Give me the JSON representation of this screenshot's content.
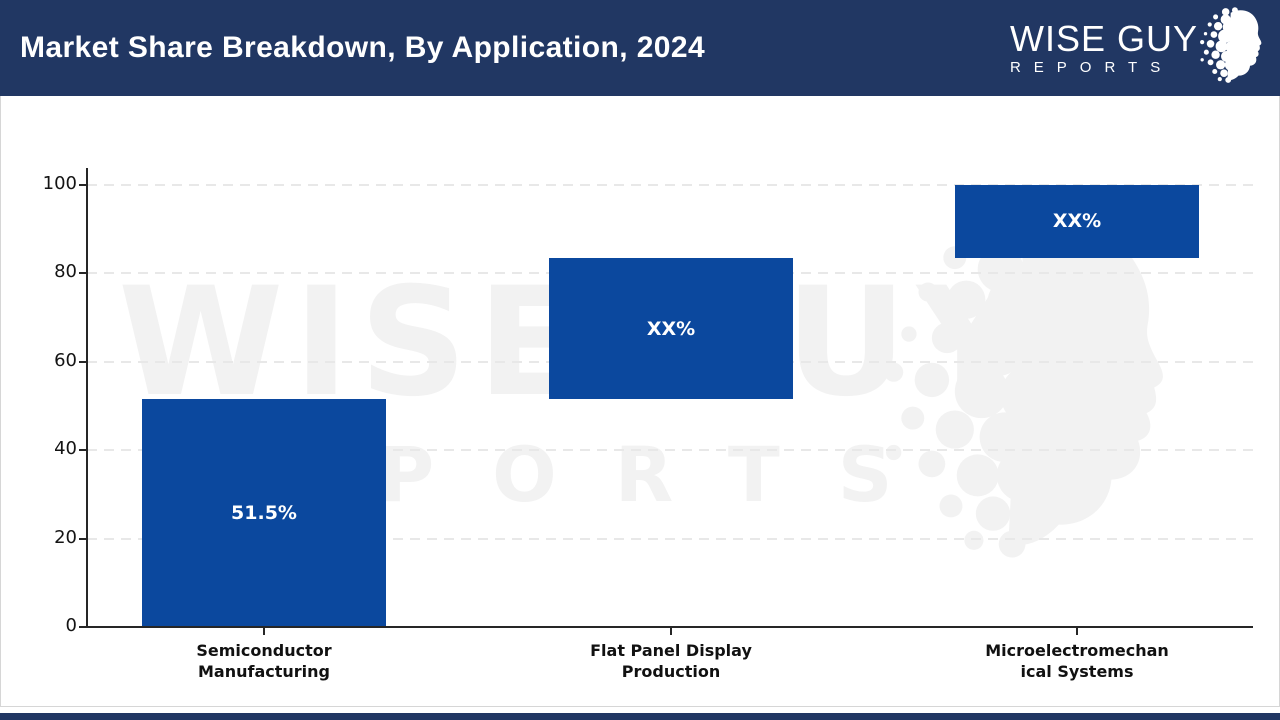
{
  "header": {
    "title": "Market Share Breakdown, By Application, 2024",
    "logo": {
      "line1": "WISE GUY",
      "line2": "REPORTS"
    }
  },
  "watermark": {
    "line1": "WISE GUY",
    "line2": "REPORTS"
  },
  "colors": {
    "header_bg": "#213763",
    "footer_bg": "#213763",
    "bar": "#0b489e",
    "axis": "#262626",
    "gridline": "#e8e8e8",
    "bar_label": "#ffffff",
    "watermark": "#f2f2f2"
  },
  "chart_data": {
    "type": "bar",
    "variant": "waterfall",
    "title": "Market Share Breakdown, By Application, 2024",
    "categories": [
      [
        "Semiconductor",
        "Manufacturing"
      ],
      [
        "Flat Panel Display",
        "Production"
      ],
      [
        "Microelectromechan",
        "ical Systems"
      ]
    ],
    "segments": [
      {
        "start": 0,
        "end": 51.5,
        "label": "51.5%"
      },
      {
        "start": 51.5,
        "end": 83.5,
        "label": "XX%"
      },
      {
        "start": 83.5,
        "end": 100,
        "label": "XX%"
      }
    ],
    "values": [
      51.5,
      32,
      16.5
    ],
    "ylim": [
      0,
      100
    ],
    "yticks": [
      0,
      20,
      40,
      60,
      80,
      100
    ],
    "grid": true,
    "grid_style": "dashed",
    "legend": "none",
    "bar_color": "#0b489e",
    "label_color": "#ffffff"
  }
}
